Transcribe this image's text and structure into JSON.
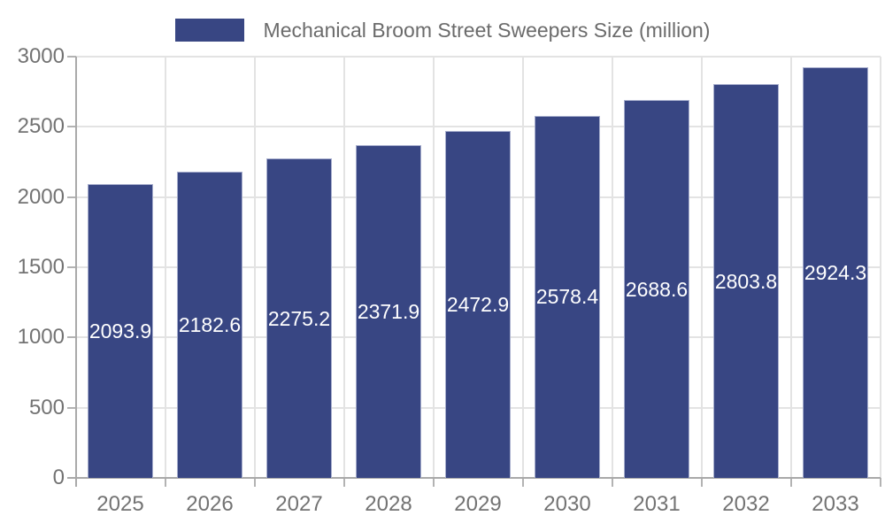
{
  "legend": {
    "label": "Mechanical Broom Street Sweepers Size (million)"
  },
  "colors": {
    "bar_fill": "#384683",
    "bar_border": "#a7aecd",
    "axis_line": "#a9a9a9",
    "tick_mark": "#b3b3b3",
    "gridline": "#e3e3e3",
    "axis_label_text": "#737373",
    "legend_text": "#6b6b6b",
    "value_label_text": "#ffffff",
    "background": "#ffffff"
  },
  "chart_data": {
    "type": "bar",
    "title": "Mechanical Broom Street Sweepers Size (million)",
    "categories": [
      "2025",
      "2026",
      "2027",
      "2028",
      "2029",
      "2030",
      "2031",
      "2032",
      "2033"
    ],
    "values": [
      2093.9,
      2182.6,
      2275.2,
      2371.9,
      2472.9,
      2578.4,
      2688.6,
      2803.8,
      2924.3
    ],
    "value_labels": [
      "2093.9",
      "2182.6",
      "2275.2",
      "2371.9",
      "2472.9",
      "2578.4",
      "2688.6",
      "2803.8",
      "2924.3"
    ],
    "series_name": "Mechanical Broom Street Sweepers Size (million)",
    "xlabel": "",
    "ylabel": "",
    "ylim": [
      0,
      3000
    ],
    "yticks": [
      0,
      500,
      1000,
      1500,
      2000,
      2500,
      3000
    ],
    "grid": true,
    "legend_position": "top",
    "value_label_position": "inside-center"
  }
}
